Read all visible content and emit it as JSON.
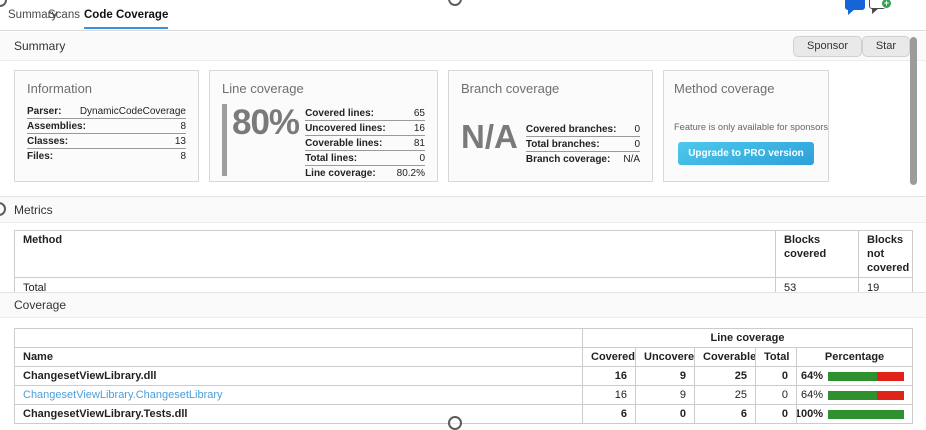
{
  "tabs": [
    {
      "label": "Summary",
      "active": false
    },
    {
      "label": "Scans",
      "active": false
    },
    {
      "label": "Code Coverage",
      "active": true
    }
  ],
  "icons": {
    "comment": "comment-icon",
    "add_comment": "add-comment-icon",
    "add_comment_badge": "+"
  },
  "summary_section": {
    "heading": "Summary",
    "sponsor_button": "Sponsor",
    "star_button": "Star",
    "cards": {
      "information": {
        "title": "Information",
        "rows": [
          {
            "label": "Parser:",
            "value": "DynamicCodeCoverage"
          },
          {
            "label": "Assemblies:",
            "value": "8"
          },
          {
            "label": "Classes:",
            "value": "13"
          },
          {
            "label": "Files:",
            "value": "8"
          }
        ]
      },
      "line_coverage": {
        "title": "Line coverage",
        "big_value": "80%",
        "rows": [
          {
            "label": "Covered lines:",
            "value": "65"
          },
          {
            "label": "Uncovered lines:",
            "value": "16"
          },
          {
            "label": "Coverable lines:",
            "value": "81"
          },
          {
            "label": "Total lines:",
            "value": "0"
          },
          {
            "label": "Line coverage:",
            "value": "80.2%"
          }
        ]
      },
      "branch_coverage": {
        "title": "Branch coverage",
        "big_value": "N/A",
        "rows": [
          {
            "label": "Covered branches:",
            "value": "0"
          },
          {
            "label": "Total branches:",
            "value": "0"
          },
          {
            "label": "Branch coverage:",
            "value": "N/A"
          }
        ]
      },
      "method_coverage": {
        "title": "Method coverage",
        "note": "Feature is only available for sponsors",
        "button_label": "Upgrade to PRO version"
      }
    }
  },
  "metrics_section": {
    "heading": "Metrics",
    "table": {
      "columns": [
        "Method",
        "Blocks covered",
        "Blocks not covered"
      ],
      "rows": [
        {
          "method": "Total",
          "blocks_covered": "53",
          "blocks_not_covered": "19"
        }
      ]
    }
  },
  "coverage_section": {
    "heading": "Coverage",
    "table": {
      "group_header": "Line coverage",
      "columns": [
        "Name",
        "Covered",
        "Uncovered",
        "Coverable",
        "Total",
        "Percentage"
      ],
      "rows": [
        {
          "name": "ChangesetViewLibrary.dll",
          "covered": "16",
          "uncovered": "9",
          "coverable": "25",
          "total": "0",
          "percentage": "64%",
          "pct": 64,
          "is_link": false
        },
        {
          "name": "ChangesetViewLibrary.ChangesetLibrary",
          "covered": "16",
          "uncovered": "9",
          "coverable": "25",
          "total": "0",
          "percentage": "64%",
          "pct": 64,
          "is_link": true
        },
        {
          "name": "ChangesetViewLibrary.Tests.dll",
          "covered": "6",
          "uncovered": "0",
          "coverable": "6",
          "total": "0",
          "percentage": "100%",
          "pct": 100,
          "is_link": false
        }
      ]
    }
  },
  "colors": {
    "active_tab_underline": "#3d8fe0",
    "link_blue": "#4aa0dc",
    "bar_green": "#2f9030",
    "bar_red": "#df2318",
    "big_value_gray": "#7a7a7a",
    "pro_button_gradient_start": "#4fc9ec",
    "pro_button_gradient_end": "#2ba0da",
    "comment_bubble_blue": "#1565d6",
    "badge_green": "#2ea44f"
  }
}
